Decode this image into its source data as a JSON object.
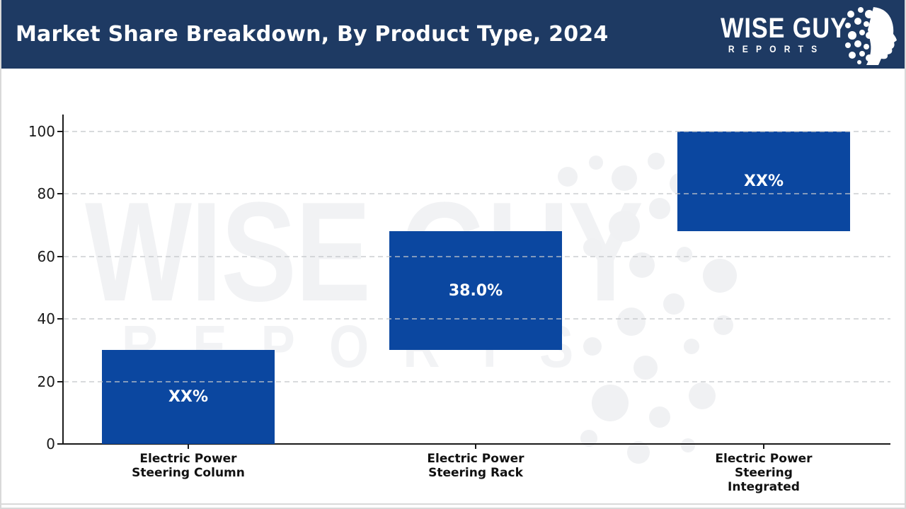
{
  "page": {
    "background": "#ffffff",
    "border_color": "#d9d9d9"
  },
  "header": {
    "background": "#1e3a63",
    "title": "Market Share Breakdown, By Product Type, 2024",
    "logo_line1": "WISE GUY",
    "logo_line2": "REPORTS"
  },
  "watermark": {
    "line1": "WISE GUY",
    "line2": "REPORTS"
  },
  "chart_data": {
    "type": "bar",
    "subtype": "stacked-waterfall",
    "title": "Market Share Breakdown, By Product Type, 2024",
    "categories": [
      [
        "Electric Power",
        "Steering Column"
      ],
      [
        "Electric Power",
        "Steering Rack"
      ],
      [
        "Electric Power",
        "Steering",
        "Integrated"
      ]
    ],
    "bars": [
      {
        "category": "Electric Power Steering Column",
        "start": 0,
        "end": 30,
        "label": "XX%"
      },
      {
        "category": "Electric Power Steering Rack",
        "start": 30,
        "end": 68,
        "label": "38.0%"
      },
      {
        "category": "Electric Power Steering Integrated",
        "start": 68,
        "end": 100,
        "label": "XX%"
      }
    ],
    "yticks": [
      0,
      20,
      40,
      60,
      80,
      100
    ],
    "ylim": [
      0,
      105
    ],
    "xlabel": "",
    "ylabel": "",
    "bar_color": "#0b47a0",
    "grid": "horizontal-dashed",
    "legend_position": "none"
  }
}
